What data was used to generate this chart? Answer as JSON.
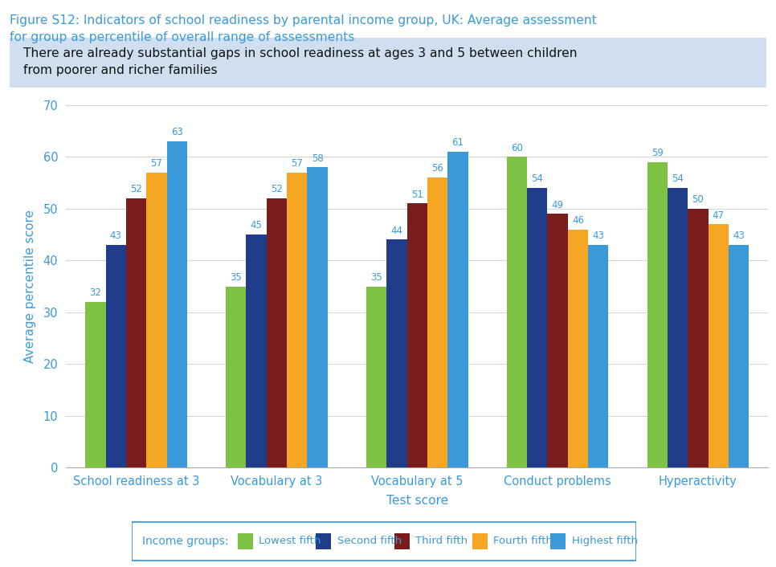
{
  "title_line1": "Figure S12: Indicators of school readiness by parental income group, UK: Average assessment",
  "title_line2": "for group as percentile of overall range of assessments",
  "subtitle": "There are already substantial gaps in school readiness at ages 3 and 5 between children\nfrom poorer and richer families",
  "categories": [
    "School readiness at 3",
    "Vocabulary at 3",
    "Vocabulary at 5",
    "Conduct problems",
    "Hyperactivity"
  ],
  "series": [
    {
      "label": "Lowest fifth",
      "color": "#7DC242",
      "values": [
        32,
        35,
        35,
        60,
        59
      ]
    },
    {
      "label": "Second fifth",
      "color": "#1F3D8A",
      "values": [
        43,
        45,
        44,
        54,
        54
      ]
    },
    {
      "label": "Third fifth",
      "color": "#7B1C1C",
      "values": [
        52,
        52,
        51,
        49,
        50
      ]
    },
    {
      "label": "Fourth fifth",
      "color": "#F5A623",
      "values": [
        57,
        57,
        56,
        46,
        47
      ]
    },
    {
      "label": "Highest fifth",
      "color": "#3A9AD9",
      "values": [
        63,
        58,
        61,
        43,
        43
      ]
    }
  ],
  "ylabel": "Average percentile score",
  "xlabel": "Test score",
  "ylim": [
    0,
    70
  ],
  "yticks": [
    0,
    10,
    20,
    30,
    40,
    50,
    60,
    70
  ],
  "title_color": "#3A9AD9",
  "axis_color": "#3A9AD9",
  "subtitle_bg": "#D0DFF0",
  "subtitle_text_color": "#111111",
  "legend_label": "Income groups:",
  "legend_border_color": "#3A9AD9",
  "bar_label_color": "#3A9AD9",
  "figsize": [
    9.66,
    7.06
  ],
  "dpi": 100
}
